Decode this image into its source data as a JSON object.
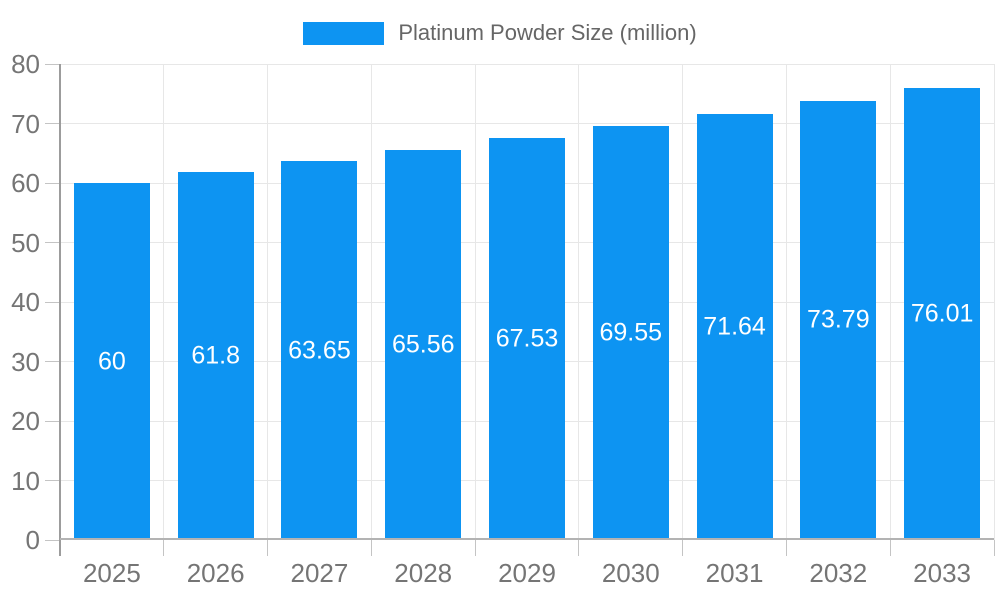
{
  "legend": {
    "label": "Platinum Powder Size (million)"
  },
  "colors": {
    "bar": "#0d94f2",
    "bar_label_text": "#ffffff",
    "legend_text": "#666666",
    "axis_label_text": "#757575",
    "gridline": "#e7e7e7",
    "axis_line": "#9c9c9c"
  },
  "chart_data": {
    "type": "bar",
    "title": "Platinum Powder Size (million)",
    "categories": [
      "2025",
      "2026",
      "2027",
      "2028",
      "2029",
      "2030",
      "2031",
      "2032",
      "2033"
    ],
    "series": [
      {
        "name": "Platinum Powder Size (million)",
        "values": [
          60,
          61.8,
          63.65,
          65.56,
          67.53,
          69.55,
          71.64,
          73.79,
          76.01
        ]
      }
    ],
    "bar_labels": [
      "60",
      "61.8",
      "63.65",
      "65.56",
      "67.53",
      "69.55",
      "71.64",
      "73.79",
      "76.01"
    ],
    "xlabel": "",
    "ylabel": "",
    "ylim": [
      0,
      80
    ],
    "yticks": [
      0,
      10,
      20,
      30,
      40,
      50,
      60,
      70,
      80
    ],
    "grid": true,
    "legend_position": "top-center",
    "bar_label_position": "center-of-bar"
  }
}
